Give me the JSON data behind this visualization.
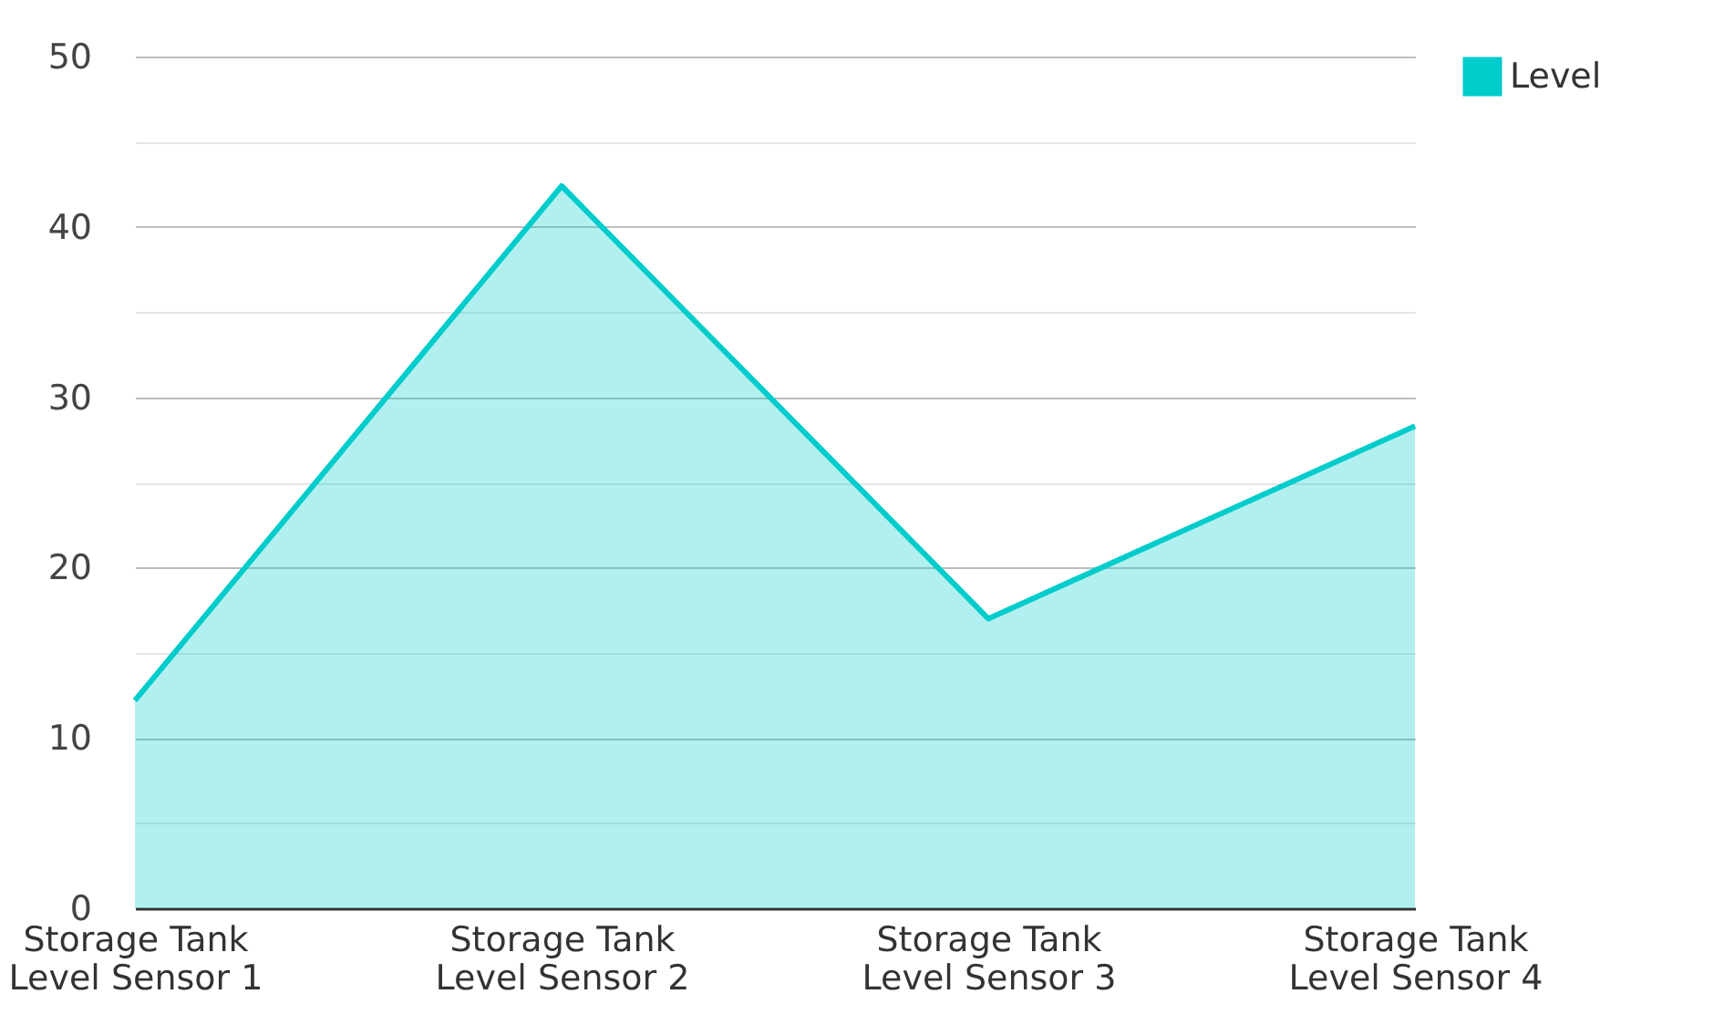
{
  "chart_data": {
    "type": "area",
    "categories": [
      "Storage Tank Level Sensor 1",
      "Storage Tank Level Sensor 2",
      "Storage Tank Level Sensor 3",
      "Storage Tank Level Sensor 4"
    ],
    "series": [
      {
        "name": "Level",
        "color": "#00cccc",
        "values": [
          12.2,
          42.4,
          17.0,
          28.3
        ]
      }
    ],
    "ylim": [
      0,
      50
    ],
    "yticks": [
      0,
      {
        "value": 5,
        "label": null
      },
      10,
      {
        "value": 15,
        "label": null
      },
      20,
      {
        "value": 25,
        "label": null
      },
      30,
      {
        "value": 35,
        "label": null
      },
      40,
      {
        "value": 45,
        "label": null
      },
      50
    ],
    "grid": true,
    "legend": "top right"
  }
}
